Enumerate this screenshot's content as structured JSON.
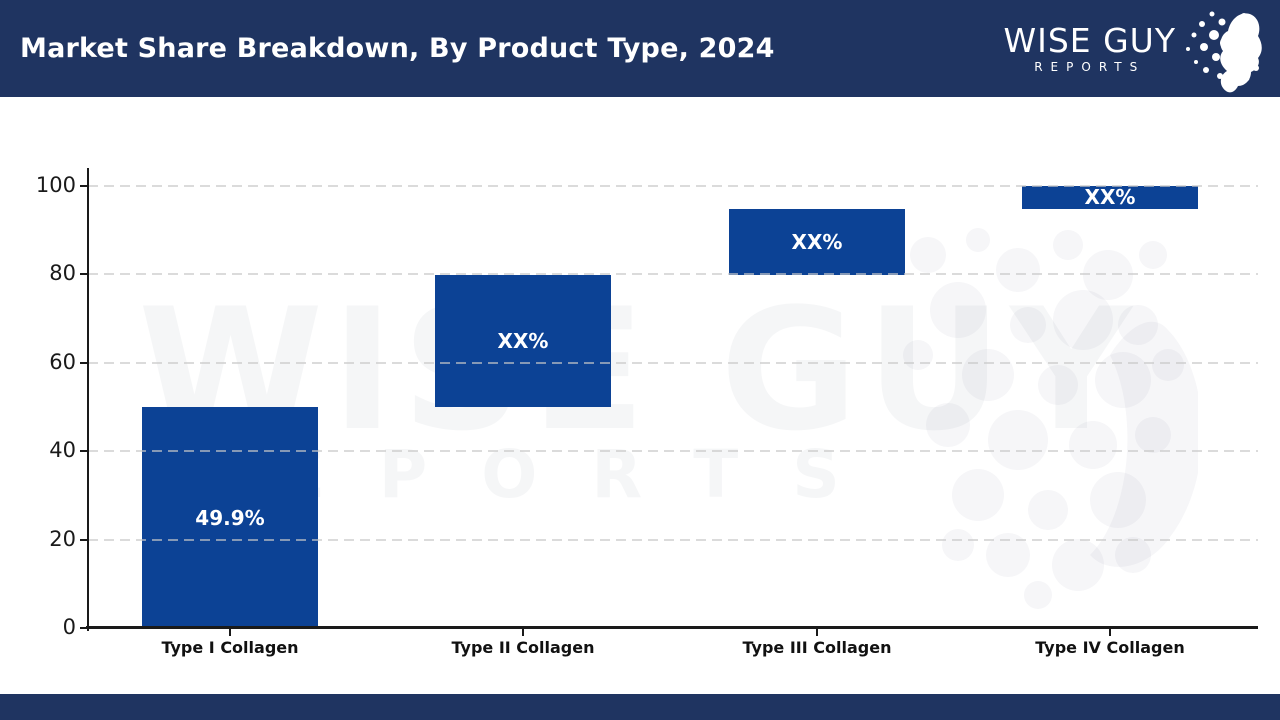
{
  "header": {
    "title": "Market Share Breakdown, By Product Type, 2024",
    "logo": {
      "name_line": "WISE GUY",
      "sub_line": "REPORTS"
    }
  },
  "watermark": {
    "line1": "WISE GUY",
    "line2": "REPORTS"
  },
  "colors": {
    "header_bg": "#1f3461",
    "footer_bg": "#1f3461",
    "bar_fill": "#0c4295",
    "bar_label_text": "#ffffff",
    "axis": "#1a1a1a",
    "gridline": "#d9d9d9",
    "title_text": "#ffffff"
  },
  "chart_data": {
    "type": "bar",
    "subtype": "floating-waterfall",
    "title": "Market Share Breakdown, By Product Type, 2024",
    "categories": [
      "Type I Collagen",
      "Type II Collagen",
      "Type III Collagen",
      "Type IV Collagen"
    ],
    "bars": [
      {
        "category": "Type I Collagen",
        "start": 0,
        "end": 49.9,
        "label": "49.9%"
      },
      {
        "category": "Type II Collagen",
        "start": 49.9,
        "end": 79.9,
        "label": "XX%"
      },
      {
        "category": "Type III Collagen",
        "start": 79.9,
        "end": 94.9,
        "label": "XX%"
      },
      {
        "category": "Type IV Collagen",
        "start": 94.9,
        "end": 100,
        "label": "XX%"
      }
    ],
    "yticks": [
      0,
      20,
      40,
      60,
      80,
      100
    ],
    "ylim": [
      0,
      104
    ],
    "xlabel": "",
    "ylabel": "",
    "grid": "horizontal-dashed",
    "legend": "none"
  }
}
